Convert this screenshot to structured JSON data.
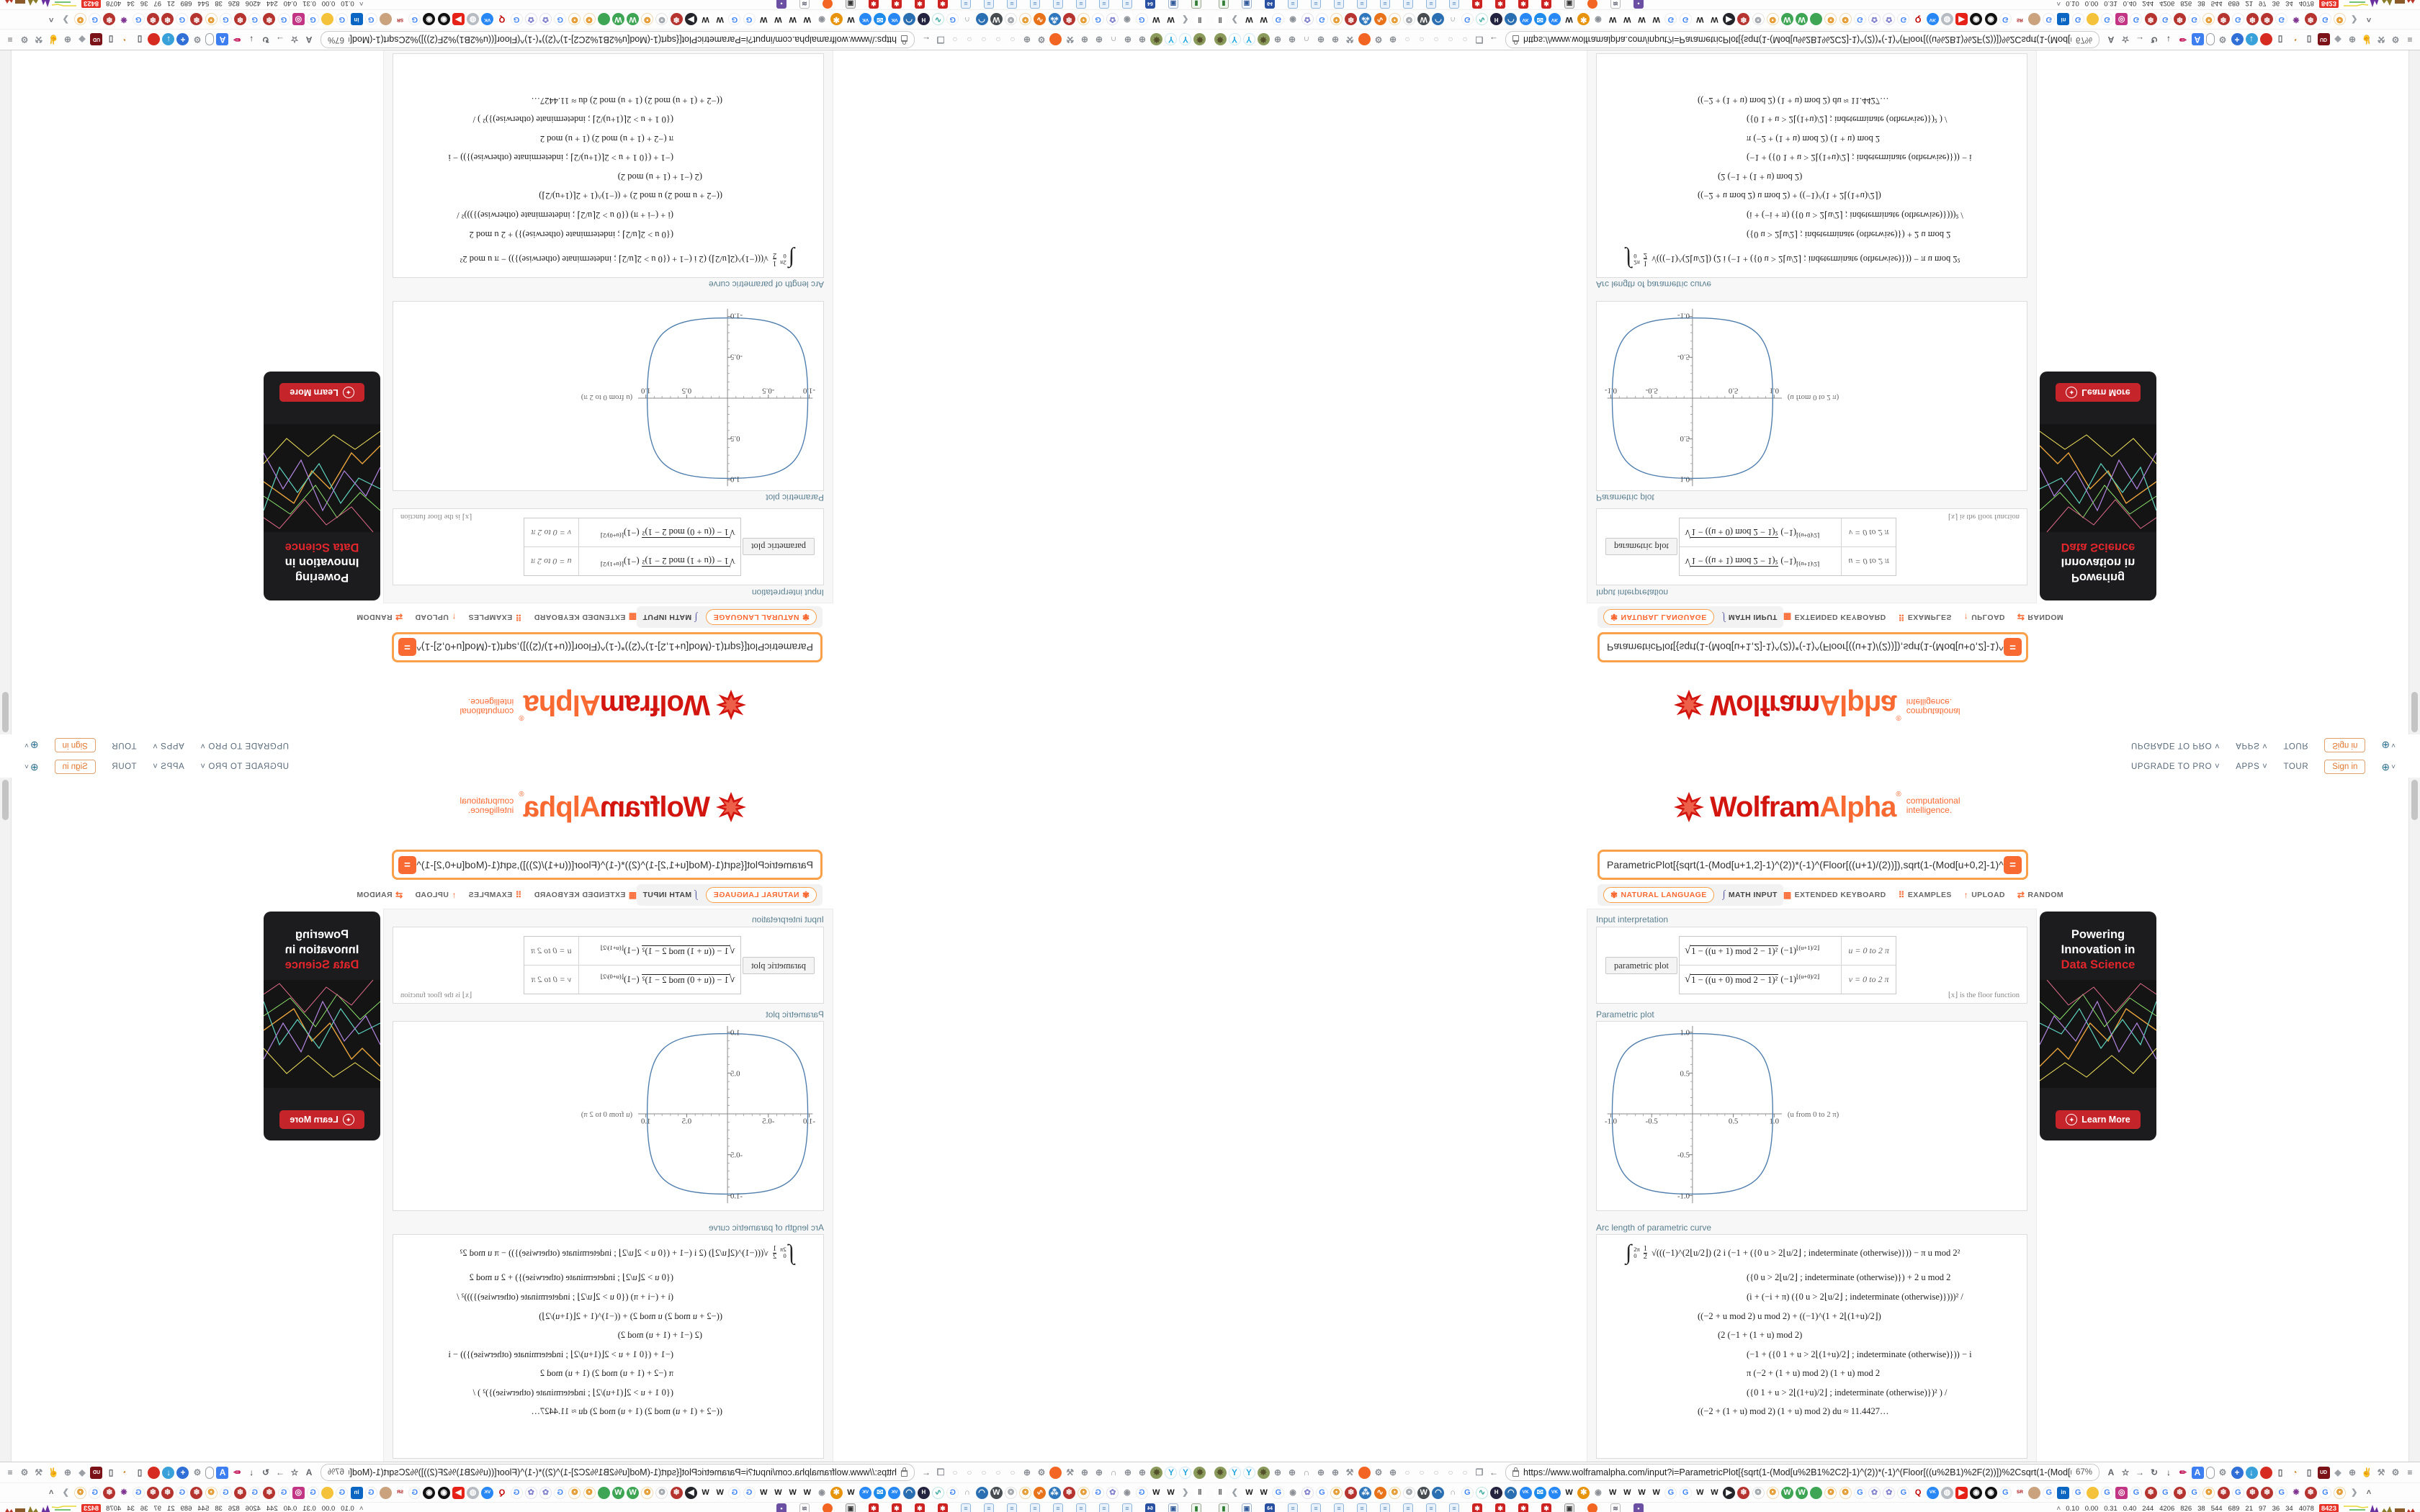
{
  "top_menu": {
    "upgrade": "UPGRADE TO PRO ˅",
    "apps": "APPS ˅",
    "tour": "TOUR",
    "sign_in": "Sign in",
    "globe_glyph": "⊕",
    "chevron": "˅"
  },
  "brand": {
    "word1": "Wolfram",
    "word2": "Alpha",
    "reg": "®",
    "tag1": "computational",
    "tag2": "intelligence."
  },
  "search": {
    "query": "ParametricPlot[{sqrt(1-(Mod[u+1,2]-1)^(2))*(-1)^(Floor[((u+1)/(2))]),sqrt(1-(Mod[u+0,2]-1)^(2))*(-1)^(Floor",
    "compute_glyph": "="
  },
  "modes": {
    "nat_icon": "✾",
    "nat": "NATURAL LANGUAGE",
    "math_icon": "∫",
    "math": "MATH INPUT",
    "kb_icon": "▦",
    "kb": "EXTENDED KEYBOARD",
    "ex_icon": "⠿",
    "ex": "EXAMPLES",
    "up_icon": "↑",
    "up": "UPLOAD",
    "rnd_icon": "⇄",
    "rnd": "RANDOM"
  },
  "sections": {
    "s1": "Input interpretation",
    "s2": "Parametric plot",
    "s3": "Arc length of parametric curve"
  },
  "interp": {
    "chip": "parametric plot",
    "r1": {
      "rad": "√",
      "body": "1 − ((u + 1) mod 2 − 1)²",
      "base": " (−1)",
      "exp": "⌊(u+1)/2⌋",
      "range": "u = 0 to 2 π"
    },
    "r2": {
      "rad": "√",
      "body": "1 − ((u + 0) mod 2 − 1)²",
      "base": " (−1)",
      "exp": "⌊(u+0)/2⌋",
      "range": "v = 0 to 2 π"
    },
    "floor_note": "⌊x⌋ is the floor function"
  },
  "plot": {
    "xticks": [
      "-1.0",
      "-0.5",
      "0.5",
      "1.0"
    ],
    "yticks": [
      "1.0",
      "0.5",
      "-0.5",
      "-1.0"
    ],
    "annotation": "(u from 0 to 2 π)"
  },
  "chart_data": {
    "type": "line",
    "title": "Parametric plot",
    "x_range": [
      -1,
      1
    ],
    "y_range": [
      -1,
      1
    ],
    "x_ticks": [
      -1.0,
      -0.5,
      0.5,
      1.0
    ],
    "y_ticks": [
      -1.0,
      -0.5,
      0.5,
      1.0
    ],
    "annotation": "(u from 0 to 2 π)",
    "curve": "closed rounded-square (superellipse-like) curve traced for u from 0 to 2π, |x|max≈0.98, |y|max≈0.98",
    "curve_color": "#4f7dad"
  },
  "arc": {
    "integral": "∫",
    "hi": "2π",
    "lo": "0",
    "num": "1",
    "den": "2",
    "line1": "√(((−1)^(2⌊u/2⌋) (2 i (−1 + ({0   u > 2⌊u/2⌋ ;  indeterminate  (otherwise)})) − π u mod 2²",
    "lines": [
      {
        "x": 168,
        "t": "({0   u > 2⌊u/2⌋ ;  indeterminate  (otherwise)}) + 2 u mod 2"
      },
      {
        "x": 168,
        "t": "(i + (−i + π) ({0   u > 2⌊u/2⌋ ;  indeterminate  (otherwise)})))² /"
      },
      {
        "x": 100,
        "t": "((−2 + u mod 2) u mod 2) + ((−1)^(1 + 2⌊(1+u)/2⌋)"
      },
      {
        "x": 128,
        "t": "(2 (−1 + (1 + u) mod 2)"
      },
      {
        "x": 168,
        "t": "(−1 + ({0   1 + u > 2⌊(1+u)/2⌋ ;  indeterminate  (otherwise)})) − i"
      },
      {
        "x": 168,
        "t": "π (−2 + (1 + u) mod 2) (1 + u) mod 2"
      },
      {
        "x": 168,
        "t": "({0   1 + u > 2⌊(1+u)/2⌋ ;  indeterminate  (otherwise)})² ) /"
      },
      {
        "x": 100,
        "t": "((−2 + (1 + u) mod 2) (1 + u) mod 2)  du ≈ 11.4427…"
      }
    ]
  },
  "ad": {
    "t1a": "Powering",
    "t1b": "Innovation in",
    "t2": "Data Science",
    "cta": "Learn More"
  },
  "toolbar": {
    "url": "https://www.wolframalpha.com/input?i=ParametricPlot[{sqrt(1-(Mod[u%2B1%2C2]-1)^(2))*(-1)^(Floor[((u%2B1)%2F(2))])%2Csqrt(1-(Mod[u%2B0%2C2]-1)^(2))*(-1)^(Floor[((u%2B0",
    "zoom": "67%",
    "stats_caret": "˄",
    "stats": [
      {
        "t": "0.10"
      },
      {
        "t": "0.00"
      },
      {
        "t": "0.31"
      },
      {
        "t": "0.40"
      },
      {
        "t": "244"
      },
      {
        "t": "4206"
      },
      {
        "t": "826"
      },
      {
        "t": "38"
      },
      {
        "t": "544"
      },
      {
        "t": "689"
      },
      {
        "t": "21"
      },
      {
        "t": "97"
      },
      {
        "t": "36"
      },
      {
        "t": "34"
      },
      {
        "t": "4078"
      }
    ],
    "stats_badge": "8423",
    "left_icons": [
      "olive",
      "party",
      "party",
      "olive",
      "globe",
      "globe",
      "gauge",
      "globe",
      "globe",
      "wrench",
      "fox",
      "gear",
      "globe",
      "circO",
      "circO",
      "circO",
      "circO",
      "circO",
      "folder",
      "back"
    ],
    "right_icons": [
      "reader",
      "star",
      "fwd",
      "reload",
      "down",
      "pen",
      "transl",
      "mouse",
      "gear",
      "plusB",
      "shieldB",
      "redB",
      "trash",
      "pie",
      "trash",
      "ud",
      "shieldG",
      "globe",
      "hand",
      "wrench",
      "gear",
      "menu"
    ],
    "bookmarks": [
      "pause",
      "chevL",
      "wS",
      "wS",
      "G",
      "eye",
      "flB",
      "G",
      "flO",
      "snow",
      "people",
      "audio",
      "flO",
      "manG",
      "wp",
      "ballB",
      "gauge",
      "G",
      "wave",
      "hex",
      "ballB",
      "vk",
      "chat",
      "vk",
      "wS",
      "orangeB",
      "eye",
      "wS",
      "wS",
      "wS",
      "wS",
      "G",
      "G",
      "wS",
      "wS",
      "playD",
      "snow",
      "manG",
      "flO",
      "wGreen",
      "wGreen",
      "greenB",
      "flO",
      "flO",
      "G",
      "flB",
      "flB",
      "G",
      "qRed",
      "vk",
      "wolf",
      "yt",
      "blackD",
      "blackD",
      "G",
      "sr",
      "tan",
      "G",
      "li",
      "G",
      "yellow",
      "G",
      "insta",
      "G",
      "snow",
      "G",
      "snow",
      "G",
      "flO",
      "snow",
      "G",
      "snow",
      "snow",
      "G",
      "purple",
      "snow",
      "G",
      "flO",
      "chevR",
      "caret"
    ],
    "tray_icons": [
      "battery",
      "monitor",
      "floppy",
      "note",
      "note",
      "note",
      "note",
      "note",
      "note",
      "note",
      "note",
      "gearR",
      "gearR",
      "gearR",
      "gearR",
      "camera",
      "fox",
      "receipt",
      "avatar"
    ]
  },
  "icon_styles": {
    "olive": {
      "g": "✸",
      "fg": "#55502c",
      "bg": "#8a9a5b",
      "name": "olive-orb"
    },
    "party": {
      "g": "Y",
      "fg": "#29a9e0",
      "bg": "#ffffff",
      "bd": "#cfe8f5",
      "name": "party-popper"
    },
    "globe": {
      "g": "⊕",
      "fg": "#8b9096",
      "name": "globe"
    },
    "gauge": {
      "g": "∩",
      "fg": "#8b9096",
      "name": "gauge"
    },
    "wrench": {
      "g": "⚒",
      "fg": "#8b9096",
      "name": "wrench"
    },
    "fox": {
      "g": "",
      "bg": "#f26522",
      "name": "firefox"
    },
    "gear": {
      "g": "⚙",
      "fg": "#8b9096",
      "name": "gear"
    },
    "circO": {
      "g": "○",
      "fg": "#b9bdc2",
      "name": "empty-circle"
    },
    "folder": {
      "g": "❐",
      "fg": "#8b9096",
      "name": "folder"
    },
    "back": {
      "g": "←",
      "fg": "#5f6368",
      "name": "back-arrow"
    },
    "reader": {
      "g": "A",
      "fg": "#5f6368",
      "name": "reader-mode"
    },
    "star": {
      "g": "☆",
      "fg": "#5f6368",
      "name": "bookmark-star"
    },
    "fwd": {
      "g": "→",
      "fg": "#5f6368",
      "name": "forward-arrow"
    },
    "reload": {
      "g": "↻",
      "fg": "#5f6368",
      "name": "reload"
    },
    "down": {
      "g": "↓",
      "fg": "#333333",
      "name": "download"
    },
    "pen": {
      "g": "✏",
      "fg": "#c2185b",
      "name": "marker-pen"
    },
    "transl": {
      "g": "A",
      "fg": "#ffffff",
      "bg": "#3d7ef0",
      "shape": "s",
      "name": "translate"
    },
    "mouse": {
      "g": "",
      "shape": "pill",
      "name": "mouse"
    },
    "plusB": {
      "g": "+",
      "fg": "#ffffff",
      "bg": "#2f6fd6",
      "name": "add-button"
    },
    "shieldB": {
      "g": "↓",
      "fg": "#ffffff",
      "bg": "#38a1d9",
      "name": "safe-download-shield"
    },
    "redB": {
      "g": "",
      "bg": "#d62b20",
      "name": "red-orb"
    },
    "trash": {
      "g": "▯",
      "fg": "#5f6368",
      "name": "trash"
    },
    "pie": {
      "g": "◔",
      "fg": "#c98a2f",
      "name": "pie-meter"
    },
    "ud": {
      "g": "UD",
      "fg": "#ffffff",
      "bg": "#7a1218",
      "shape": "s",
      "fs": "7px",
      "name": "ud-badge"
    },
    "shieldG": {
      "g": "◆",
      "fg": "#9aa0a6",
      "name": "shield"
    },
    "hand": {
      "g": "✌",
      "fg": "#8b9096",
      "name": "gesture-hand"
    },
    "menu": {
      "g": "≡",
      "fg": "#5f6368",
      "name": "browser-menu"
    },
    "G": {
      "g": "G",
      "fg": "#4285f4",
      "bg": "#ffffff",
      "bd": "#ececec",
      "name": "google-favicon"
    },
    "snow": {
      "g": "❄",
      "fg": "#ffffff",
      "bg": "#b5342f",
      "name": "red-mandala-favicon"
    },
    "flO": {
      "g": "❂",
      "fg": "#e2921f",
      "bg": "#ffffff",
      "bd": "#f0d9b0",
      "name": "orange-mandala-favicon"
    },
    "manG": {
      "g": "❂",
      "fg": "#9aa0a6",
      "bg": "#ffffff",
      "bd": "#e3e3e3",
      "name": "gray-mandala-favicon"
    },
    "flB": {
      "g": "✿",
      "fg": "#8585cf",
      "bg": "#ffffff",
      "bd": "#e0e0ef",
      "name": "blue-flower-favicon"
    },
    "wS": {
      "g": "W",
      "fg": "#1b1b1b",
      "bg": "#ffffff",
      "name": "w-favicon"
    },
    "wGreen": {
      "g": "W",
      "fg": "#ffffff",
      "bg": "#3da554",
      "name": "green-w-favicon"
    },
    "greenB": {
      "g": "",
      "bg": "#3da554",
      "name": "green-orb-favicon"
    },
    "wp": {
      "g": "W",
      "fg": "#ffffff",
      "bg": "#464c50",
      "name": "wordpress-favicon"
    },
    "vk": {
      "g": "VK",
      "fg": "#ffffff",
      "bg": "#2787f5",
      "fs": "6.5px",
      "name": "vk-favicon"
    },
    "chat": {
      "g": "✉",
      "fg": "#ffffff",
      "bg": "#1f8ceb",
      "name": "mail-favicon"
    },
    "hex": {
      "g": "H",
      "fg": "#ffffff",
      "bg": "#23233f",
      "fs": "8px",
      "name": "hex-favicon"
    },
    "ballB": {
      "g": "◠",
      "fg": "#ffffff",
      "bg": "#2b6fb3",
      "name": "blue-orb-favicon"
    },
    "eye": {
      "g": "◉",
      "fg": "#8b9096",
      "bg": "#ffffff",
      "name": "target-favicon"
    },
    "wave": {
      "g": "∿",
      "fg": "#2aa198",
      "bg": "#ffffff",
      "bd": "#bfe5e2",
      "name": "wave-favicon"
    },
    "orangeB": {
      "g": "✱",
      "fg": "#ffffff",
      "bg": "#e8930c",
      "name": "orange-badge-favicon"
    },
    "playD": {
      "g": "▶",
      "fg": "#ffffff",
      "bg": "#23252a",
      "name": "play-favicon"
    },
    "qRed": {
      "g": "Q",
      "fg": "#c00000",
      "bg": "#ffffff",
      "name": "q-favicon"
    },
    "wolf": {
      "g": "◍",
      "fg": "#ffffff",
      "bg": "#b7bcc3",
      "name": "wolf-favicon"
    },
    "yt": {
      "g": "▶",
      "fg": "#ffffff",
      "bg": "#e62117",
      "shape": "r",
      "name": "youtube-favicon"
    },
    "blackD": {
      "g": "◉",
      "fg": "#ffffff",
      "bg": "#111111",
      "name": "black-orb-favicon"
    },
    "sr": {
      "g": "SR",
      "fg": "#a40e0e",
      "bg": "#ffffff",
      "fs": "6.5px",
      "name": "sr-favicon"
    },
    "tan": {
      "g": "",
      "bg": "#caa27e",
      "name": "portrait-favicon"
    },
    "li": {
      "g": "in",
      "fg": "#ffffff",
      "bg": "#0a66c2",
      "shape": "s",
      "fs": "8px",
      "name": "linkedin-favicon"
    },
    "yellow": {
      "g": "",
      "bg": "#f5c33b",
      "name": "yellow-orb-favicon"
    },
    "insta": {
      "g": "◎",
      "fg": "#ffffff",
      "bg": "#c13584",
      "shape": "s",
      "name": "instagram-favicon"
    },
    "purple": {
      "g": "❋",
      "fg": "#7b2d8e",
      "bg": "#ffffff",
      "name": "purple-burst-favicon"
    },
    "people": {
      "g": "⁂",
      "fg": "#ffffff",
      "bg": "#2e77bc",
      "name": "people-favicon"
    },
    "audio": {
      "g": "∿",
      "fg": "#ffffff",
      "bg": "#e8731a",
      "name": "audio-favicon"
    },
    "pause": {
      "g": "‖",
      "fg": "#444444",
      "bg": "#ffffff",
      "name": "pause-favicon"
    },
    "chevL": {
      "g": "❮",
      "fg": "#9aa0a6",
      "name": "chevron-left"
    },
    "chevR": {
      "g": "❯",
      "fg": "#9aa0a6",
      "name": "chevron-right"
    },
    "caret": {
      "g": "˄",
      "fg": "#5f6368",
      "name": "collapse-caret"
    },
    "battery": {
      "g": "▮",
      "fg": "#2e7d32",
      "bg": "#eef5ee",
      "bd": "#9aa58f",
      "shape": "s",
      "name": "battery-tray"
    },
    "monitor": {
      "g": "▣",
      "fg": "#335a9a",
      "bg": "#f4f7fb",
      "bd": "#9fb3cd",
      "shape": "s",
      "name": "monitor-tray"
    },
    "floppy": {
      "g": "64",
      "fg": "#ffffff",
      "bg": "#2a50a1",
      "fs": "7px",
      "shape": "s",
      "name": "floppy-tray"
    },
    "note": {
      "g": "≡",
      "fg": "#5588bb",
      "bg": "#eaf3fb",
      "bd": "#8fb3d9",
      "shape": "s",
      "name": "notepad-tray"
    },
    "gearR": {
      "g": "✱",
      "fg": "#ffffff",
      "bg": "#cc2222",
      "shape": "s",
      "name": "red-gear-tray"
    },
    "camera": {
      "g": "▣",
      "fg": "#333333",
      "bg": "#e7e7e7",
      "bd": "#999999",
      "shape": "s",
      "name": "camera-tray"
    },
    "receipt": {
      "g": "≋",
      "fg": "#666677",
      "bg": "#ffffff",
      "bd": "#bbbbbb",
      "shape": "s",
      "name": "receipt-tray"
    },
    "avatar": {
      "g": "•",
      "fg": "#ffffff",
      "bg": "#6a4fa3",
      "shape": "s",
      "name": "avatar-tray"
    }
  }
}
